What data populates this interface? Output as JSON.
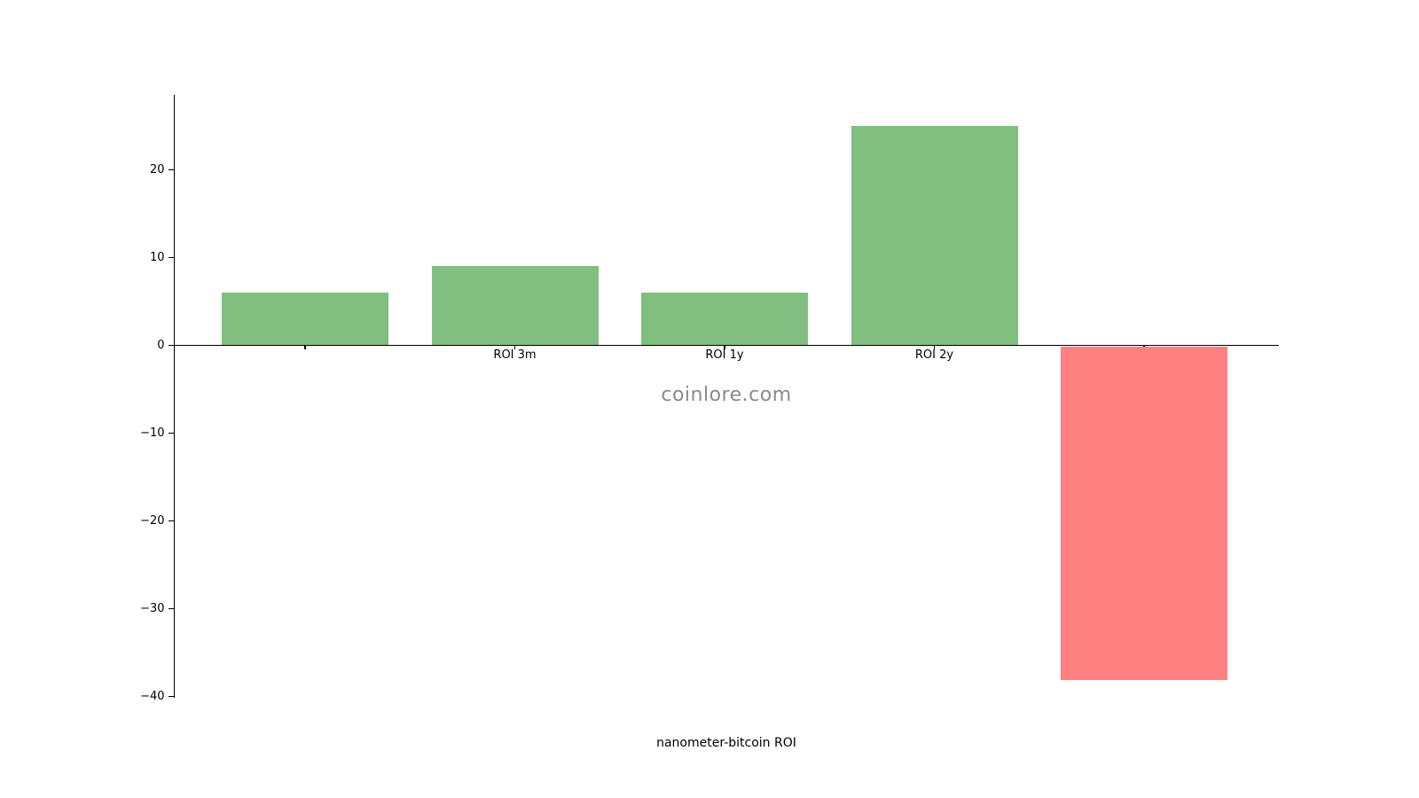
{
  "chart_data": {
    "type": "bar",
    "categories": [
      "",
      "ROI 3m",
      "ROI 1y",
      "ROI 2y",
      ""
    ],
    "values": [
      6,
      9,
      6,
      25,
      -38
    ],
    "bar_colors": [
      "#80bf80",
      "#80bf80",
      "#80bf80",
      "#80bf80",
      "#ff8080"
    ],
    "yticks": [
      20,
      10,
      0,
      -10,
      -20,
      -30,
      -40
    ],
    "ytick_labels": [
      "20",
      "10",
      "0",
      "−10",
      "−20",
      "−30",
      "−40"
    ],
    "ylim": [
      -40.2,
      28.5
    ],
    "xlabel": "nanometer-bitcoin ROI",
    "watermark": {
      "text": "coinlore.com",
      "color": "#8a8a8a"
    },
    "colors": {
      "positive": "#80bf80",
      "negative": "#ff8080",
      "axis": "#000000",
      "tick_text": "#000000",
      "background": "#ffffff"
    },
    "grid": false,
    "legend_position": "none"
  }
}
